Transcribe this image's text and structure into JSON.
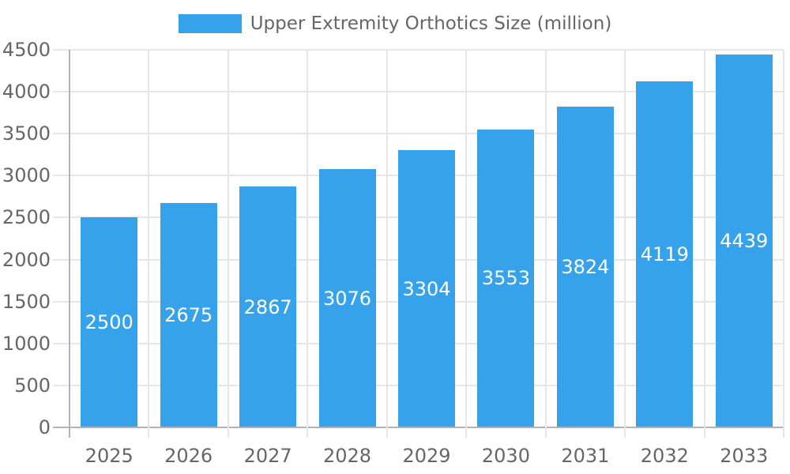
{
  "legend": {
    "label": "Upper Extremity Orthotics Size (million)"
  },
  "colors": {
    "bar": "#36A2EB",
    "grid": "#E6E6E6",
    "zero_line": "#B2B2B2",
    "tick_label": "#666666",
    "legend_text": "#666666",
    "bar_label": "#FFFFFF",
    "background": "#FFFFFF"
  },
  "chart_data": {
    "type": "bar",
    "title": "Upper Extremity Orthotics Size (million)",
    "categories": [
      "2025",
      "2026",
      "2027",
      "2028",
      "2029",
      "2030",
      "2031",
      "2032",
      "2033"
    ],
    "values": [
      2500,
      2675,
      2867,
      3076,
      3304,
      3553,
      3824,
      4119,
      4439
    ],
    "series": [
      {
        "name": "Upper Extremity Orthotics Size (million)",
        "values": [
          2500,
          2675,
          2867,
          3076,
          3304,
          3553,
          3824,
          4119,
          4439
        ]
      }
    ],
    "xlabel": "",
    "ylabel": "",
    "ylim": [
      0,
      4500
    ],
    "yticks": [
      0,
      500,
      1000,
      1500,
      2000,
      2500,
      3000,
      3500,
      4000,
      4500
    ],
    "grid": true,
    "legend_position": "top",
    "bar_value_labels": "inside-center-white"
  }
}
